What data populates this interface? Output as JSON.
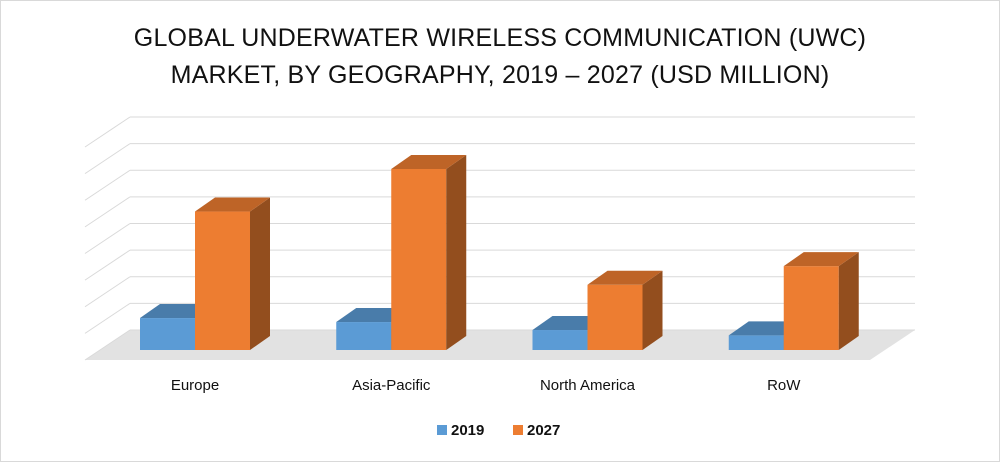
{
  "chart_data": {
    "type": "bar",
    "title_line1": "GLOBAL UNDERWATER WIRELESS COMMUNICATION (UWC)",
    "title_line2": "MARKET, BY GEOGRAPHY, 2019 – 2027 (USD MILLION)",
    "categories": [
      "Europe",
      "Asia-Pacific",
      "North America",
      "RoW"
    ],
    "series": [
      {
        "name": "2019",
        "values": [
          1.2,
          1.05,
          0.75,
          0.55
        ],
        "color": "#5b9bd5"
      },
      {
        "name": "2027",
        "values": [
          5.2,
          6.8,
          2.45,
          3.15
        ],
        "color": "#ed7d31"
      }
    ],
    "ylim": [
      0,
      8
    ],
    "grid": true,
    "legend": "bottom-center",
    "style": "3d-column"
  }
}
